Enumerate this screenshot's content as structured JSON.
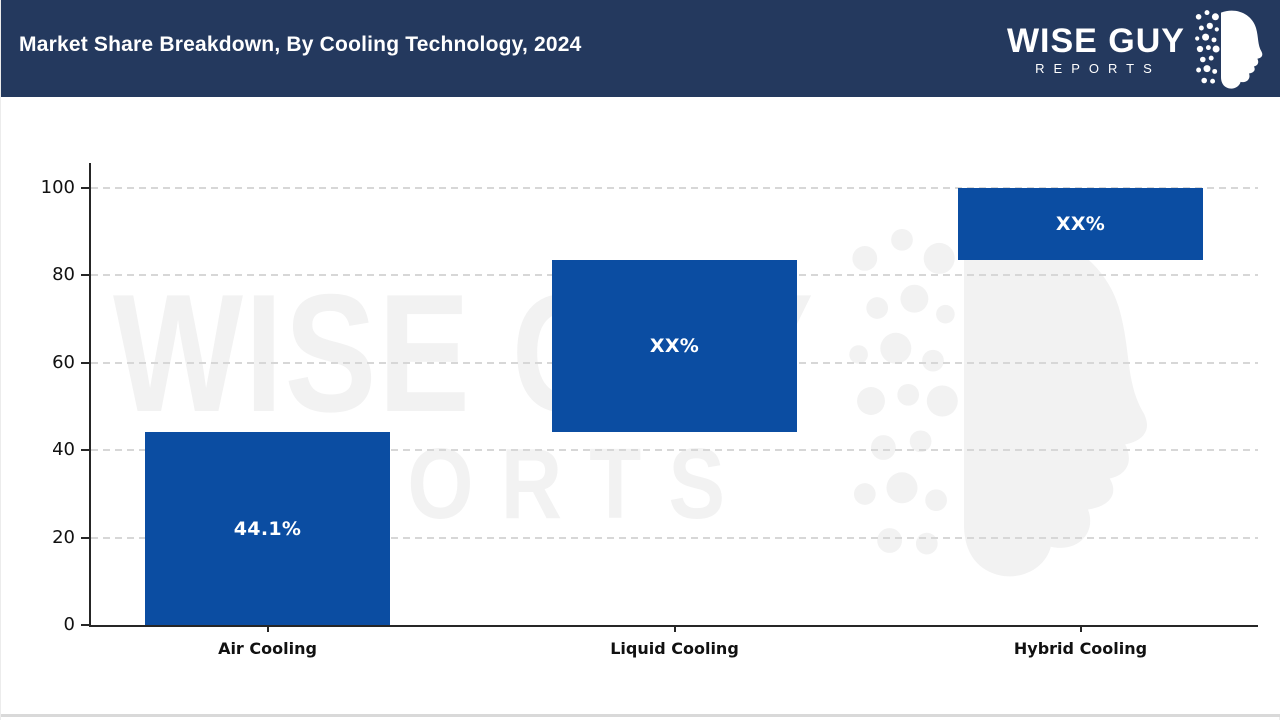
{
  "header": {
    "title": "Market Share Breakdown, By Cooling Technology, 2024",
    "logo": {
      "name": "WISE GUY",
      "sub": "REPORTS"
    }
  },
  "watermark": {
    "line1": "WISE GUY",
    "line2": "REPORTS"
  },
  "colors": {
    "header_bg": "#24395e",
    "bar": "#0b4da2",
    "grid": "#d7d7d7",
    "axis": "#262626",
    "watermark": "#f2f2f2",
    "value_label": "#ffffff"
  },
  "chart_data": {
    "type": "bar",
    "subtype": "floating-waterfall",
    "title": "Market Share Breakdown, By Cooling Technology, 2024",
    "categories": [
      "Air Cooling",
      "Liquid Cooling",
      "Hybrid Cooling"
    ],
    "segments": [
      {
        "category": "Air Cooling",
        "start": 0,
        "end": 44.1,
        "label": "44.1%"
      },
      {
        "category": "Liquid Cooling",
        "start": 44.1,
        "end": 83.4,
        "label": "XX%"
      },
      {
        "category": "Hybrid Cooling",
        "start": 83.4,
        "end": 100,
        "label": "XX%"
      }
    ],
    "xlabel": "",
    "ylabel": "",
    "ylim": [
      0,
      100
    ],
    "yticks": [
      0,
      20,
      40,
      60,
      80,
      100
    ],
    "grid": "horizontal-dashed",
    "legend": "none"
  }
}
